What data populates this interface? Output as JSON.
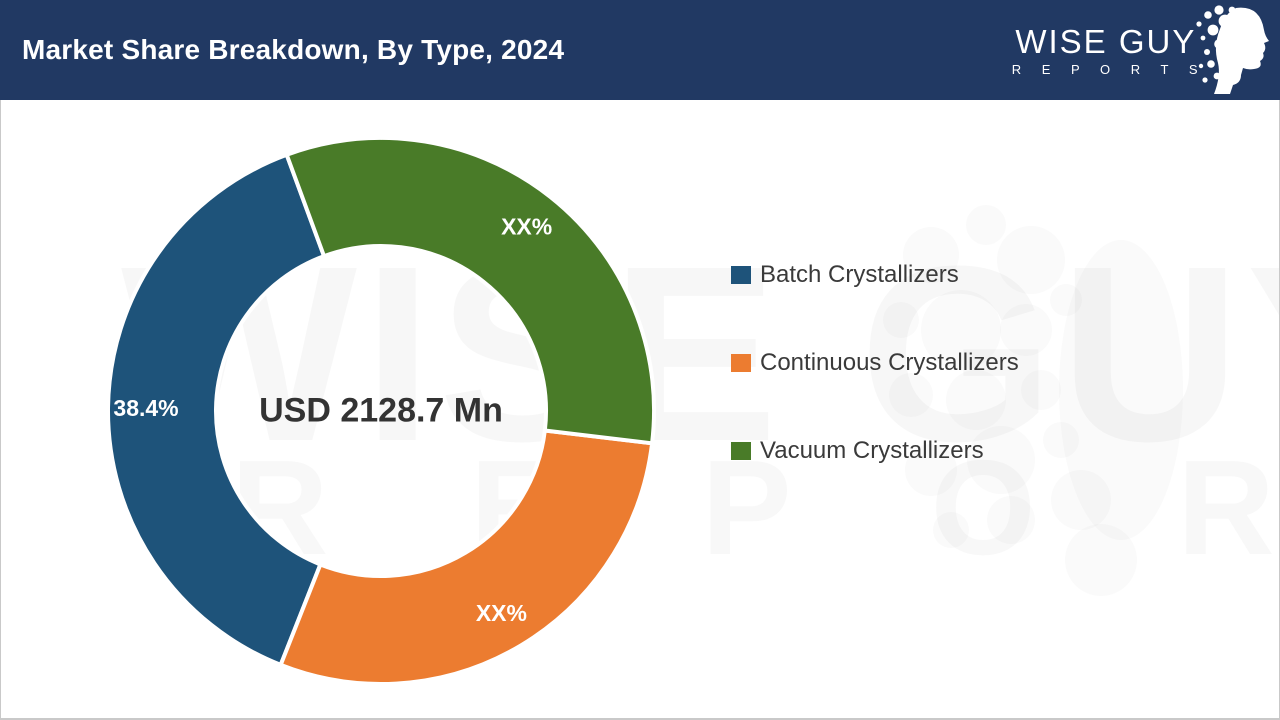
{
  "header": {
    "title": "Market Share Breakdown, By Type, 2024",
    "background_color": "#213963",
    "logo": {
      "line1": "WISE GUY",
      "line2": "R E P O R T S"
    }
  },
  "watermark": {
    "line1": "WISE GUY",
    "line2": "R E P O R T S"
  },
  "chart_data": {
    "type": "pie",
    "donut": true,
    "title": "Market Share Breakdown, By Type, 2024",
    "center_label": "USD 2128.7 Mn",
    "start_angle_deg": 110.2,
    "direction": "counterclockwise",
    "legend_position": "right",
    "series": [
      {
        "name": "Batch Crystallizers",
        "value_pct": 38.4,
        "display_label": "38.4%",
        "color": "#1E537A"
      },
      {
        "name": "Continuous Crystallizers",
        "value_pct": 29.1,
        "display_label": "XX%",
        "color": "#EC7C30"
      },
      {
        "name": "Vacuum Crystallizers",
        "value_pct": 32.5,
        "display_label": "XX%",
        "color": "#497B28"
      }
    ]
  }
}
